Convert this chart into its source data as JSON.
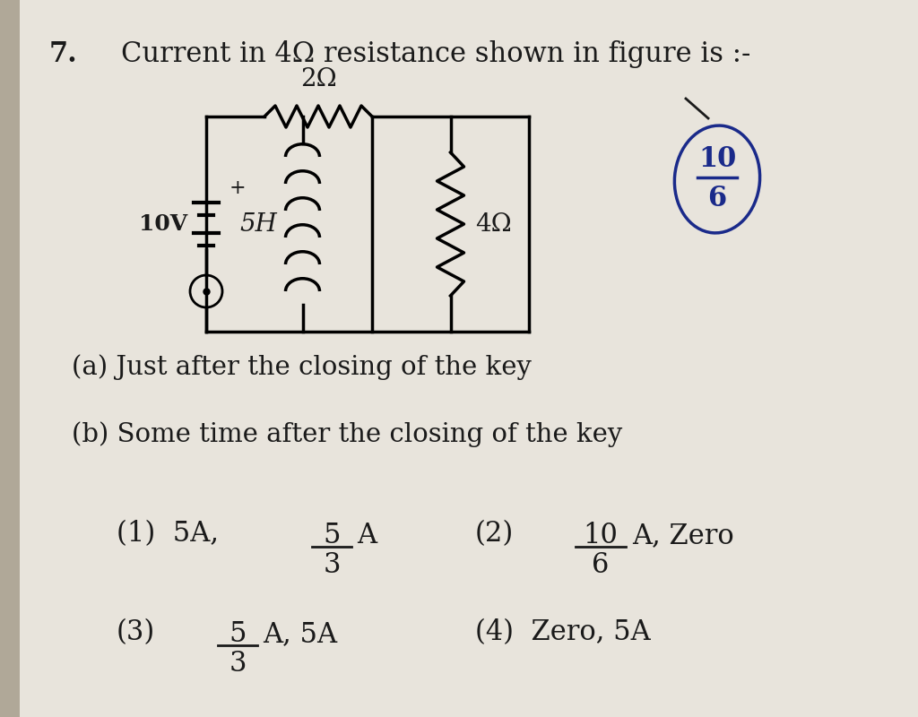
{
  "background_color": "#c8c2b8",
  "page_color": "#e8e4dc",
  "title_number": "7.",
  "title_text": "Current in 4Ω resistance shown in figure is :-",
  "question_part_a": "(a) Just after the closing of the key",
  "question_part_b": "(b) Some time after the closing of the key",
  "font_color": "#1a1a1a",
  "circuit": {
    "voltage": "10V",
    "resistor1": "2Ω",
    "inductor": "5H",
    "resistor2": "4Ω"
  },
  "circle_annotation": {
    "num": "10",
    "den": "6",
    "color": "#1a2a8a"
  },
  "opt1_whole": "5A,",
  "opt1_frac_n": "5",
  "opt1_frac_d": "3",
  "opt1_unit": "A",
  "opt2_frac_n": "10",
  "opt2_frac_d": "6",
  "opt2_text": "A, Zero",
  "opt3_frac_n": "5",
  "opt3_frac_d": "3",
  "opt3_text": "A, 5A",
  "opt4_text": "Zero, 5A"
}
